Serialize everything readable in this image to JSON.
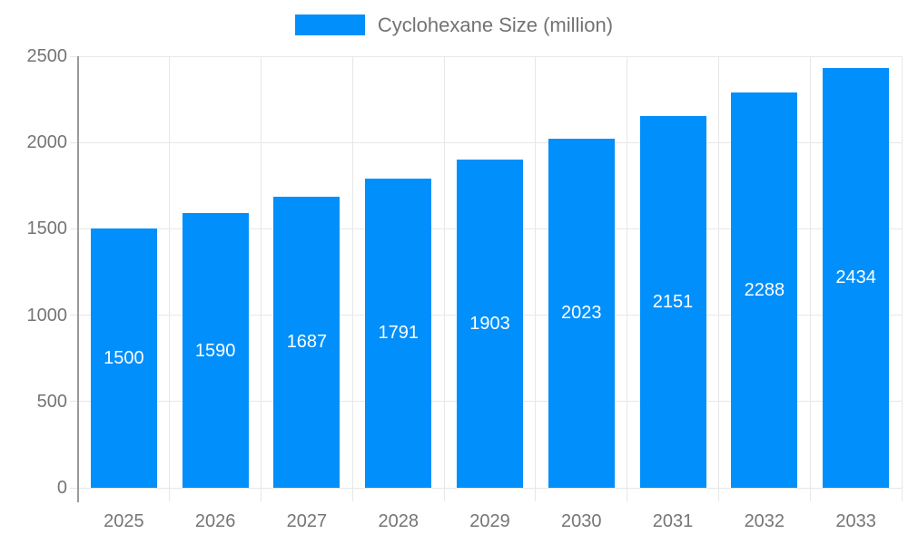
{
  "chart_data": {
    "type": "bar",
    "title": "Cyclohexane Size (million)",
    "legend": {
      "position": "top",
      "label": "Cyclohexane Size (million)"
    },
    "categories": [
      "2025",
      "2026",
      "2027",
      "2028",
      "2029",
      "2030",
      "2031",
      "2032",
      "2033"
    ],
    "series": [
      {
        "name": "Cyclohexane Size (million)",
        "values": [
          1500,
          1590,
          1687,
          1791,
          1903,
          2023,
          2151,
          2288,
          2434
        ]
      }
    ],
    "value_labels": [
      "1500",
      "1590",
      "1687",
      "1791",
      "1903",
      "2023",
      "2151",
      "2288",
      "2434"
    ],
    "xlabel": "",
    "ylabel": "",
    "ylim": [
      0,
      2500
    ],
    "y_ticks": [
      0,
      500,
      1000,
      1500,
      2000,
      2500
    ],
    "y_tick_labels": [
      "0",
      "500",
      "1000",
      "1500",
      "2000",
      "2500"
    ],
    "grid": true,
    "value_label_position": "inside-center",
    "colors": {
      "bar": "#008FFB",
      "grid": "#e7e7e7",
      "axis_line": "#9a9a9a",
      "tick_text": "#757575",
      "legend_text": "#737373",
      "value_label": "#ffffff",
      "background": "#ffffff"
    }
  }
}
